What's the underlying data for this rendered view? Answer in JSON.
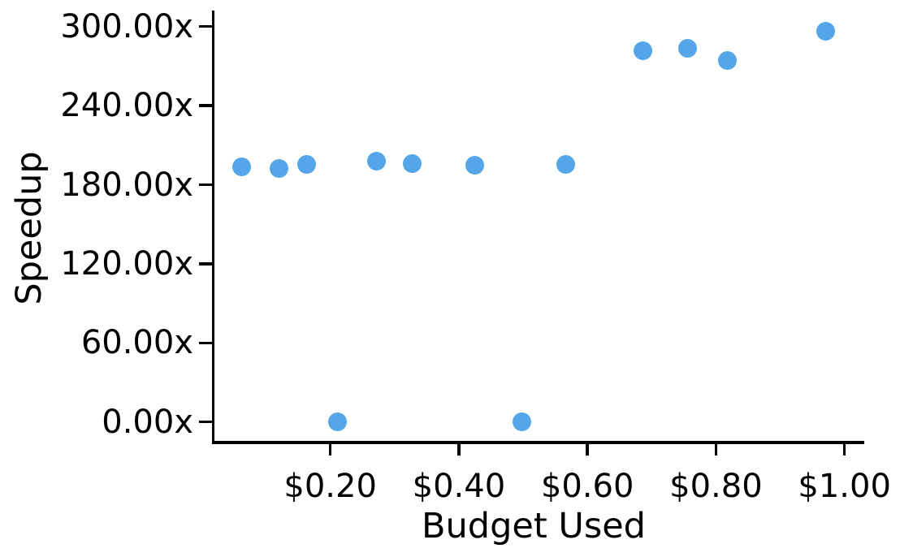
{
  "chart_data": {
    "type": "scatter",
    "title": "",
    "grid": false,
    "legend": null,
    "background_color": "#ffffff",
    "axis_color": "#000000",
    "marker": {
      "shape": "circle",
      "color": "#55a6e8"
    },
    "x_axis": {
      "label": "Budget Used",
      "tick_values": [
        0.2,
        0.4,
        0.6,
        0.8,
        1.0
      ],
      "tick_labels": [
        "$0.20",
        "$0.40",
        "$0.60",
        "$0.80",
        "$1.00"
      ],
      "range": [
        0.0172,
        1.0295
      ]
    },
    "y_axis": {
      "label": "Speedup",
      "tick_values": [
        0,
        60,
        120,
        180,
        240,
        300
      ],
      "tick_labels": [
        "0.00x",
        "60.00x",
        "120.00x",
        "180.00x",
        "240.00x",
        "300.00x"
      ],
      "range": [
        -15.6,
        312.2
      ]
    },
    "points": [
      {
        "budget": 0.062,
        "speedup": 193.5
      },
      {
        "budget": 0.12,
        "speedup": 192.3
      },
      {
        "budget": 0.163,
        "speedup": 195.3
      },
      {
        "budget": 0.211,
        "speedup": 0.0
      },
      {
        "budget": 0.272,
        "speedup": 197.6
      },
      {
        "budget": 0.328,
        "speedup": 195.9
      },
      {
        "budget": 0.425,
        "speedup": 195.0
      },
      {
        "budget": 0.498,
        "speedup": 0.0
      },
      {
        "budget": 0.566,
        "speedup": 195.3
      },
      {
        "budget": 0.686,
        "speedup": 281.6
      },
      {
        "budget": 0.756,
        "speedup": 283.7
      },
      {
        "budget": 0.818,
        "speedup": 274.0
      },
      {
        "budget": 0.971,
        "speedup": 296.6
      }
    ]
  }
}
